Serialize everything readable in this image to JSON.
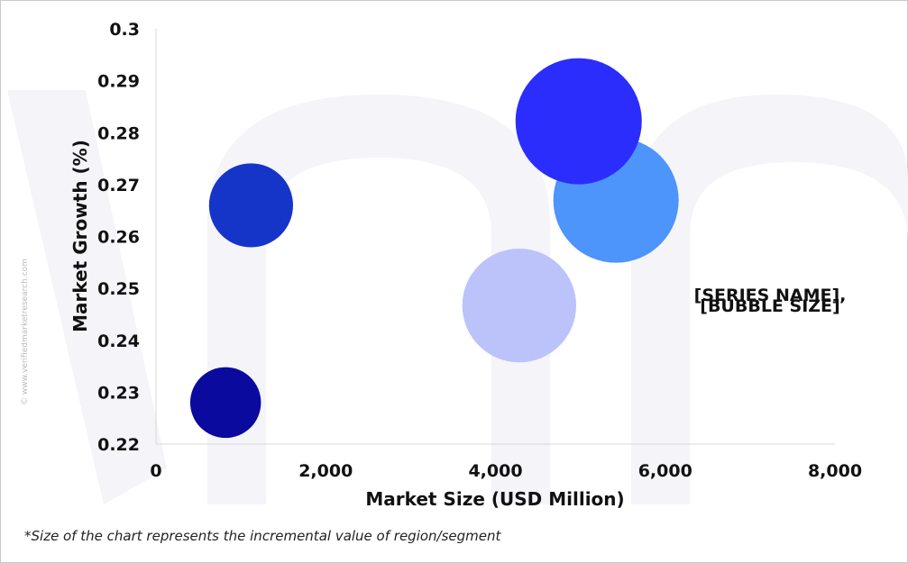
{
  "chart_data": {
    "type": "scatter",
    "variant": "bubble",
    "title": "",
    "xlabel": "Market Size (USD Million)",
    "ylabel": "Market Growth (%)",
    "xlim": [
      0,
      8000
    ],
    "ylim": [
      0.22,
      0.3
    ],
    "x_ticks": [
      "0",
      "2,000",
      "4,000",
      "6,000",
      "8,000"
    ],
    "y_ticks": [
      "0.22",
      "0.23",
      "0.24",
      "0.25",
      "0.26",
      "0.27",
      "0.28",
      "0.29",
      "0.3"
    ],
    "grid": false,
    "legend": "none",
    "points": [
      {
        "x": 820,
        "y": 0.228,
        "size": 22,
        "color": "#0a0a9e"
      },
      {
        "x": 1120,
        "y": 0.266,
        "size": 31,
        "color": "#1535c9"
      },
      {
        "x": 4280,
        "y": 0.2467,
        "size": 57,
        "color": "#bcc3fb"
      },
      {
        "x": 5420,
        "y": 0.267,
        "size": 69,
        "color": "#4d94fb"
      },
      {
        "x": 4980,
        "y": 0.2822,
        "size": 70,
        "color": "#2b2dfd"
      }
    ],
    "annotation_lines": [
      "[SERIES NAME],",
      "[BUBBLE SIZE]"
    ]
  },
  "footnote": "*Size of the chart represents the incremental value of region/segment",
  "watermark_text": "© www.verifiedmarketresearch.com"
}
